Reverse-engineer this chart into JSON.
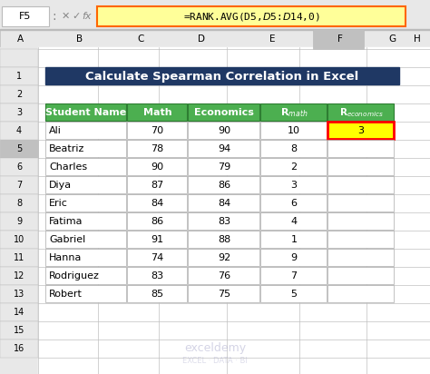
{
  "title": "Calculate Spearman Correlation in Excel",
  "title_bg": "#1F3864",
  "title_color": "#FFFFFF",
  "formula_bar_text": "=RANK.AVG(D5,$D$5:$D$14,0)",
  "formula_cell": "F5",
  "col_headers": [
    "Student Name",
    "Math",
    "Economics",
    "R_math",
    "R_economics"
  ],
  "col_header_bg": "#4CAF50",
  "col_header_color": "#FFFFFF",
  "rows": [
    [
      "Ali",
      "70",
      "90",
      "10",
      "3"
    ],
    [
      "Beatriz",
      "78",
      "94",
      "8",
      ""
    ],
    [
      "Charles",
      "90",
      "79",
      "2",
      ""
    ],
    [
      "Diya",
      "87",
      "86",
      "3",
      ""
    ],
    [
      "Eric",
      "84",
      "84",
      "6",
      ""
    ],
    [
      "Fatima",
      "86",
      "83",
      "4",
      ""
    ],
    [
      "Gabriel",
      "91",
      "88",
      "1",
      ""
    ],
    [
      "Hanna",
      "74",
      "92",
      "9",
      ""
    ],
    [
      "Rodriguez",
      "83",
      "76",
      "7",
      ""
    ],
    [
      "Robert",
      "85",
      "75",
      "5",
      ""
    ]
  ],
  "row_bg_normal": "#FFFFFF",
  "row_border_color": "#AAAAAA",
  "highlighted_cell_bg": "#FFFF00",
  "highlighted_cell_border": "#FF0000",
  "excel_bg": "#F0F0F0",
  "formula_bar_bg": "#FFFF99",
  "formula_bar_border": "#FF6600",
  "col_ref_highlight": "#C0C0C0",
  "row_ref_highlight": "#C0C0C0",
  "grid_line_color": "#C0C0C0",
  "table_border_color": "#2E7D32"
}
